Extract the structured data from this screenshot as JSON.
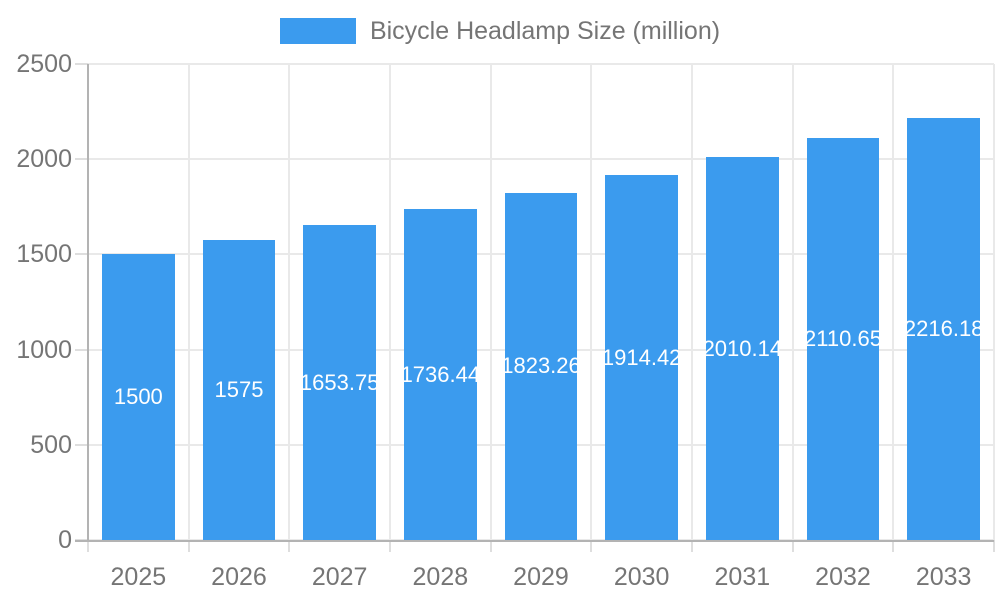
{
  "chart_data": {
    "type": "bar",
    "title": "Bicycle Headlamp Size (million)",
    "categories": [
      "2025",
      "2026",
      "2027",
      "2028",
      "2029",
      "2030",
      "2031",
      "2032",
      "2033"
    ],
    "values": [
      1500,
      1575,
      1653.75,
      1736.44,
      1823.26,
      1914.42,
      2010.14,
      2110.65,
      2216.18
    ],
    "value_labels": [
      "1500",
      "1575",
      "1653.75",
      "1736.44",
      "1823.26",
      "1914.42",
      "2010.14",
      "2110.65",
      "2216.18"
    ],
    "yticks": [
      0,
      500,
      1000,
      1500,
      2000,
      2500
    ],
    "ytick_labels": [
      "0",
      "500",
      "1000",
      "1500",
      "2000",
      "2500"
    ],
    "ylim": [
      0,
      2500
    ],
    "xlabel": "",
    "ylabel": "",
    "grid": "on",
    "legend_position": "top-center",
    "colors": {
      "bar": "#3B9BEE",
      "axis_text": "#757575",
      "grid_line": "#e9e9e9",
      "tick_line": "#dedede",
      "axis_line": "#b3b3b3",
      "value_label_text": "#ffffff",
      "background": "#ffffff"
    }
  }
}
